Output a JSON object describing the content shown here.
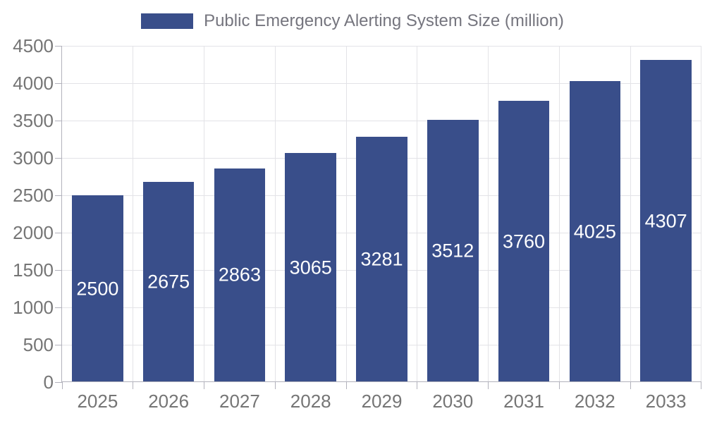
{
  "figure": {
    "background": "#FFFFFF"
  },
  "legend": {
    "label": "Public Emergency Alerting System Size (million)"
  },
  "chart_data": {
    "type": "bar",
    "title": "Public Emergency Alerting System Size (million)",
    "categories": [
      "2025",
      "2026",
      "2027",
      "2028",
      "2029",
      "2030",
      "2031",
      "2032",
      "2033"
    ],
    "series": [
      {
        "name": "Public Emergency Alerting System Size (million)",
        "values": [
          2500,
          2675,
          2863,
          3065,
          3281,
          3512,
          3760,
          4025,
          4307
        ]
      }
    ],
    "value_labels": [
      "2500",
      "2675",
      "2863",
      "3065",
      "3281",
      "3512",
      "3760",
      "4025",
      "4307"
    ],
    "xlabel": "",
    "ylabel": "",
    "ylim": [
      0,
      4500
    ],
    "ytick_step": 500,
    "yticks": [
      "0",
      "500",
      "1000",
      "1500",
      "2000",
      "2500",
      "3000",
      "3500",
      "4000",
      "4500"
    ],
    "grid": true,
    "legend_position": "top",
    "colors": {
      "bar": "#394E8A",
      "value_label": "#FFFFFF",
      "axis_text": "#757575",
      "legend_text": "#75757E",
      "grid_line": "#E3E3E7",
      "axis_line": "#B2B2BC"
    }
  }
}
